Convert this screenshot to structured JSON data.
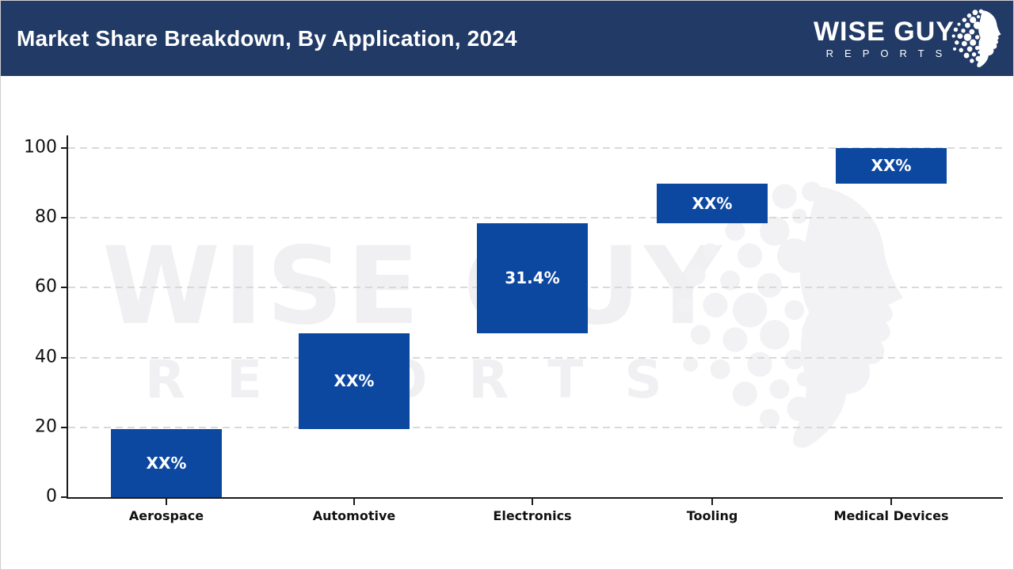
{
  "header": {
    "title": "Market Share Breakdown, By Application, 2024",
    "logo": {
      "line1": "WISE GUY",
      "line2": "REPORTS"
    }
  },
  "watermark": {
    "line1": "WISE GUY",
    "line2": "REPORTS"
  },
  "colors": {
    "header_bg": "#213a66",
    "header_text": "#ffffff",
    "bar_blue": "#0d48a0",
    "bar_label_text": "#ffffff",
    "gridline": "#d9d9d9",
    "axis": "#1a1a1a",
    "tick_text": "#111111",
    "watermark": "#f0f0f3",
    "watermark_head": "#f2f2f4",
    "frame_border": "#cfcfcf"
  },
  "chart_data": {
    "type": "bar",
    "subtype": "waterfall",
    "title": "Market Share Breakdown, By Application, 2024",
    "categories": [
      "Aerospace",
      "Automotive",
      "Electronics",
      "Tooling",
      "Medical Devices"
    ],
    "segments": [
      {
        "category": "Aerospace",
        "start": 0,
        "end": 19.5,
        "label": "XX%"
      },
      {
        "category": "Automotive",
        "start": 19.5,
        "end": 47,
        "label": "XX%"
      },
      {
        "category": "Electronics",
        "start": 47,
        "end": 78.4,
        "label": "31.4%"
      },
      {
        "category": "Tooling",
        "start": 78.4,
        "end": 89.8,
        "label": "XX%"
      },
      {
        "category": "Medical Devices",
        "start": 89.8,
        "end": 100,
        "label": "XX%"
      }
    ],
    "yticks": [
      0,
      20,
      40,
      60,
      80,
      100
    ],
    "ylim": [
      0,
      103.6
    ],
    "xlabel": "",
    "ylabel": "",
    "grid": "horizontal-dashed",
    "legend": "none",
    "bar_color": "#0d48a0"
  }
}
